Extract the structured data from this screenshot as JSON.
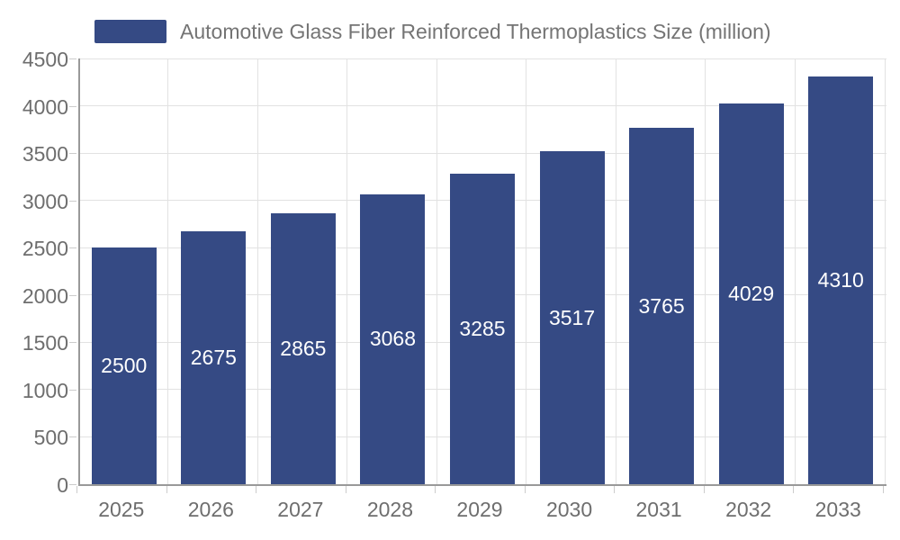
{
  "legend": {
    "label": "Automotive Glass Fiber Reinforced Thermoplastics Size (million)"
  },
  "chart_data": {
    "type": "bar",
    "title": "Automotive Glass Fiber Reinforced Thermoplastics Size (million)",
    "categories": [
      "2025",
      "2026",
      "2027",
      "2028",
      "2029",
      "2030",
      "2031",
      "2032",
      "2033"
    ],
    "values": [
      2500,
      2675,
      2865,
      3068,
      3285,
      3517,
      3765,
      4029,
      4310
    ],
    "series": [
      {
        "name": "Automotive Glass Fiber Reinforced Thermoplastics Size (million)",
        "values": [
          2500,
          2675,
          2865,
          3068,
          3285,
          3517,
          3765,
          4029,
          4310
        ]
      }
    ],
    "xlabel": "",
    "ylabel": "",
    "ylim": [
      0,
      4500
    ],
    "ytick_interval": 500,
    "yticks": [
      0,
      500,
      1000,
      1500,
      2000,
      2500,
      3000,
      3500,
      4000,
      4500
    ],
    "grid": "on",
    "legend_position": "top",
    "value_labels": "inside-center",
    "colors": {
      "bar": "#354a84",
      "value_label": "#ffffff",
      "axis_text": "#6e6e6e",
      "legend_text": "#747474",
      "grid_line": "#e2e2e2",
      "axis_line": "#999999"
    }
  }
}
